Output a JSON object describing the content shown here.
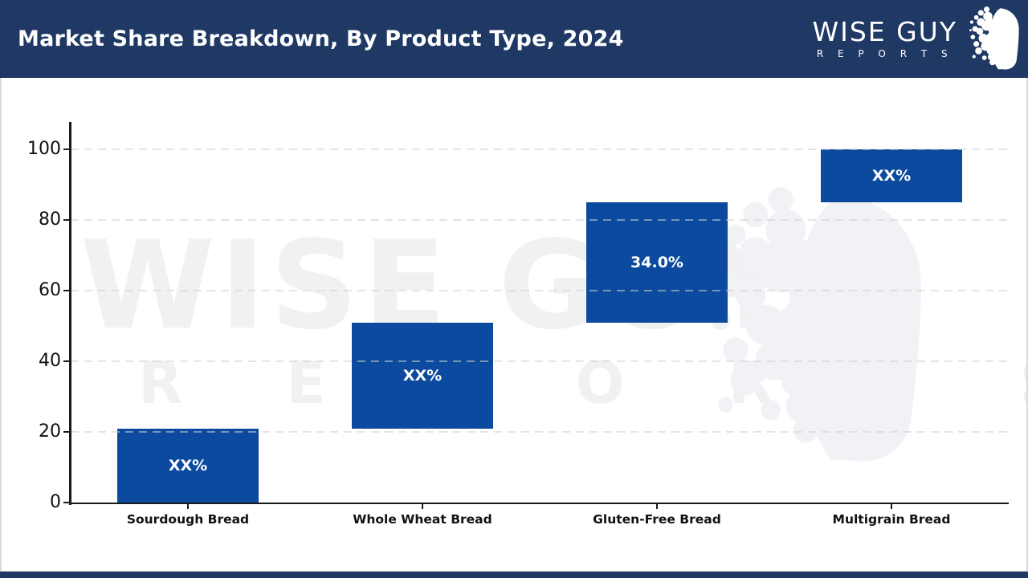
{
  "header": {
    "title": "Market Share Breakdown, By Product Type, 2024",
    "brand": {
      "name": "WISE GUY",
      "reports": "R E P O R T S"
    }
  },
  "watermark": {
    "line1": "WISE GUY",
    "line2": "R E P O R T S"
  },
  "chart_data": {
    "type": "bar",
    "subtype": "floating-waterfall",
    "title": "Market Share Breakdown, By Product Type, 2024",
    "categories": [
      "Sourdough Bread",
      "Whole Wheat Bread",
      "Gluten-Free Bread",
      "Multigrain Bread"
    ],
    "series": [
      {
        "name": "Market Share (%)",
        "segments": [
          {
            "category": "Sourdough Bread",
            "start": 0,
            "end": 21,
            "value": 21,
            "label": "XX%"
          },
          {
            "category": "Whole Wheat Bread",
            "start": 21,
            "end": 51,
            "value": 30,
            "label": "XX%"
          },
          {
            "category": "Gluten-Free Bread",
            "start": 51,
            "end": 85,
            "value": 34,
            "label": "34.0%"
          },
          {
            "category": "Multigrain Bread",
            "start": 85,
            "end": 100,
            "value": 15,
            "label": "XX%"
          }
        ]
      }
    ],
    "xlabel": "",
    "ylabel": "",
    "ylim": [
      0,
      100
    ],
    "yticks": [
      0,
      20,
      40,
      60,
      80,
      100
    ],
    "grid": "horizontal-dashed",
    "legend": "none",
    "colors": {
      "bar": "#0b4a9e",
      "bar_label": "#ffffff",
      "axis": "#1a1a1a",
      "gridline": "#dcdcdc",
      "header_bg": "#1f3864",
      "watermark": "#f1f1f4"
    }
  }
}
